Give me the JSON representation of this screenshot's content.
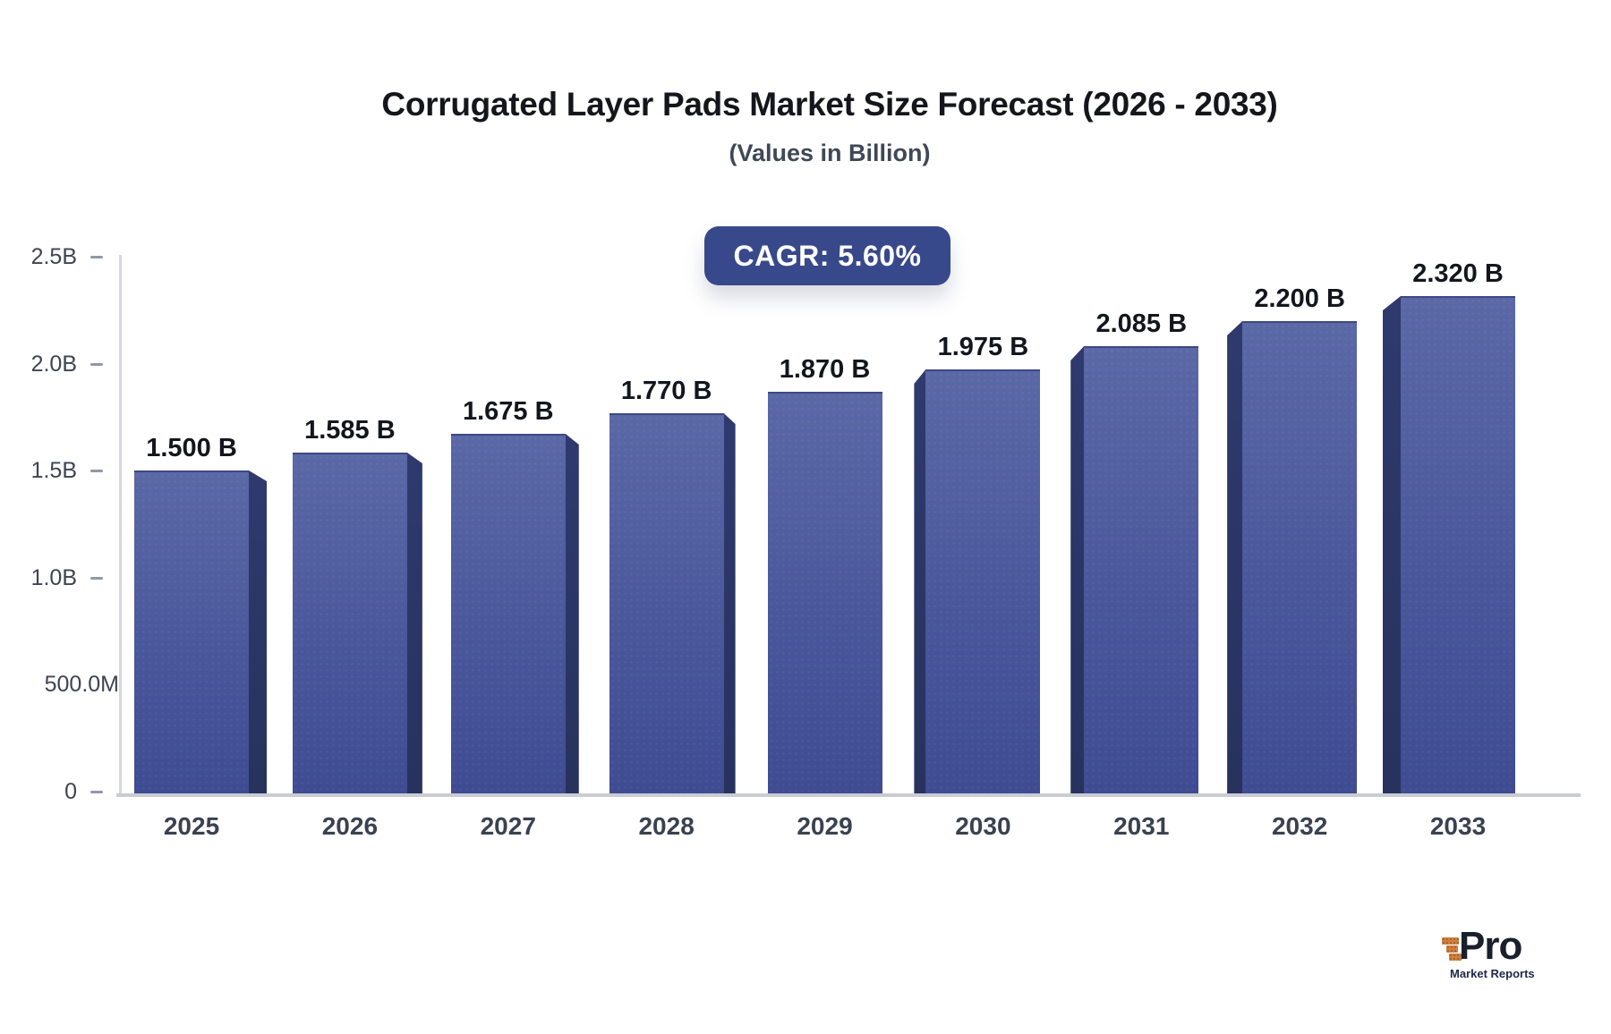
{
  "chart": {
    "title": "Corrugated Layer Pads Market Size Forecast (2026 - 2033)",
    "subtitle": "(Values in Billion)",
    "cagr_label": "CAGR: 5.60%"
  },
  "chart_data": {
    "type": "bar",
    "title": "Corrugated Layer Pads Market Size Forecast (2026 - 2033)",
    "subtitle": "(Values in Billion)",
    "unit": "Billion",
    "cagr": "5.60%",
    "categories": [
      "2025",
      "2026",
      "2027",
      "2028",
      "2029",
      "2030",
      "2031",
      "2032",
      "2033"
    ],
    "values": [
      1.5,
      1.585,
      1.675,
      1.77,
      1.87,
      1.975,
      2.085,
      2.2,
      2.32
    ],
    "bar_labels": [
      "1.500 B",
      "1.585 B",
      "1.675 B",
      "1.770 B",
      "1.870 B",
      "1.975 B",
      "2.085 B",
      "2.200 B",
      "2.320 B"
    ],
    "xlabel": "",
    "ylabel": "",
    "ylim": [
      0,
      2.5
    ],
    "grid": false,
    "legend": false,
    "y_ticks": [
      {
        "label": "0",
        "value": 0.0,
        "dash": true
      },
      {
        "label": "500.0M",
        "value": 0.5,
        "dash": false
      },
      {
        "label": "1.0B",
        "value": 1.0,
        "dash": true
      },
      {
        "label": "1.5B",
        "value": 1.5,
        "dash": true
      },
      {
        "label": "2.0B",
        "value": 2.0,
        "dash": true
      },
      {
        "label": "2.5B",
        "value": 2.5,
        "dash": true
      }
    ],
    "colors": {
      "bar_front_top": "#5b68a6",
      "bar_front_bottom": "#3f4c92",
      "bar_side": "#2b3462",
      "badge_background": "#38498b",
      "badge_text": "#ffffff",
      "axis_line": "#c9ccd3",
      "tick_text": "#3e4451",
      "value_text": "#13161d"
    }
  },
  "logo": {
    "brand": "Pro",
    "tagline": "Market Reports",
    "accent_color": "#cf8040"
  }
}
